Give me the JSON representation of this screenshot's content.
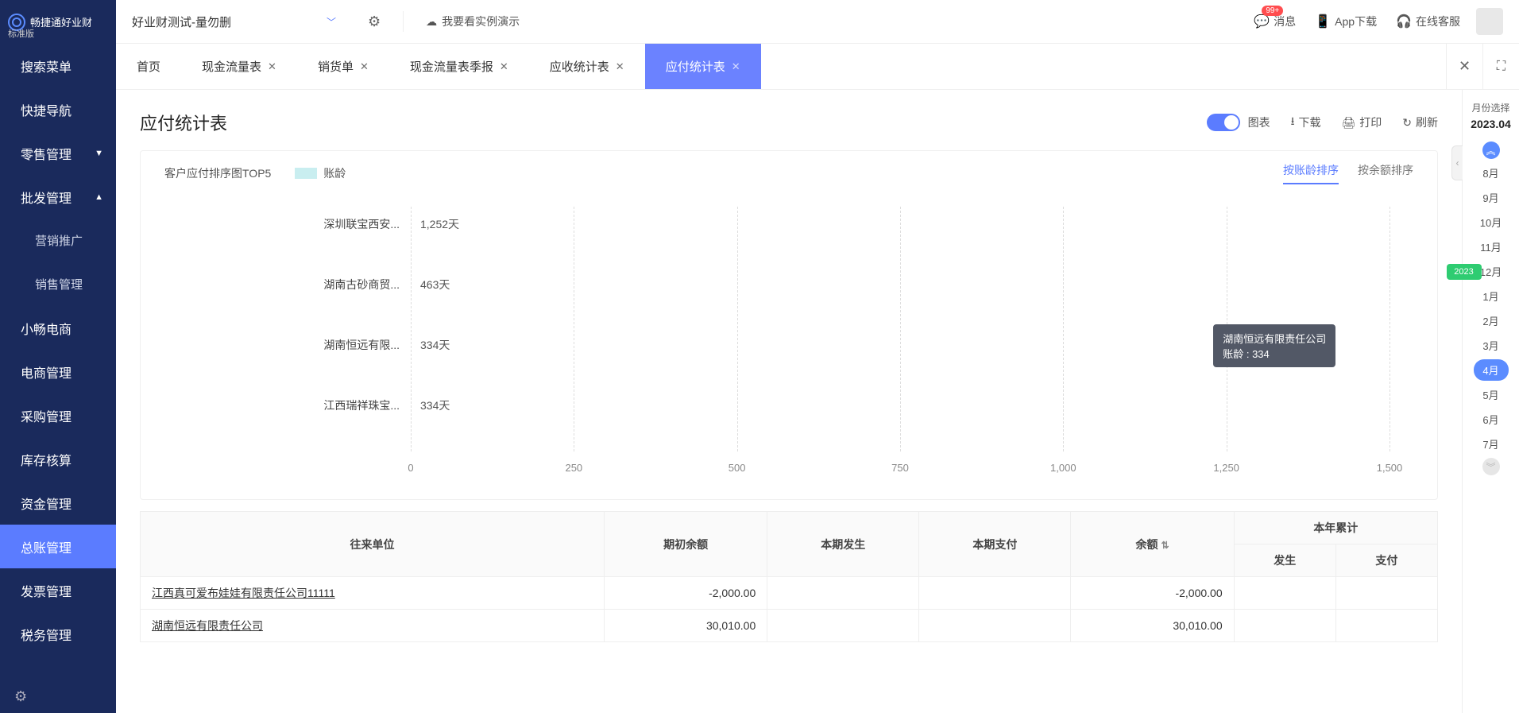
{
  "brand": {
    "name": "畅捷通好业财",
    "edition": "标准版"
  },
  "header": {
    "workspace": "好业财测试-量勿删",
    "demo_link": "我要看实例演示",
    "badge": "99+",
    "buttons": {
      "msg": "消息",
      "app": "App下载",
      "support": "在线客服"
    }
  },
  "sidebar": {
    "items": [
      {
        "label": "搜索菜单"
      },
      {
        "label": "快捷导航"
      },
      {
        "label": "零售管理",
        "chev": "▼"
      },
      {
        "label": "批发管理",
        "chev": "▲"
      },
      {
        "label": "营销推广",
        "sub": true
      },
      {
        "label": "销售管理",
        "sub": true
      },
      {
        "label": "小畅电商"
      },
      {
        "label": "电商管理"
      },
      {
        "label": "采购管理"
      },
      {
        "label": "库存核算"
      },
      {
        "label": "资金管理"
      },
      {
        "label": "总账管理",
        "active": true
      },
      {
        "label": "发票管理"
      },
      {
        "label": "税务管理"
      }
    ]
  },
  "tabs": [
    {
      "label": "首页",
      "closable": false
    },
    {
      "label": "现金流量表",
      "closable": true
    },
    {
      "label": "销货单",
      "closable": true
    },
    {
      "label": "现金流量表季报",
      "closable": true
    },
    {
      "label": "应收统计表",
      "closable": true
    },
    {
      "label": "应付统计表",
      "closable": true,
      "active": true
    }
  ],
  "page": {
    "title": "应付统计表",
    "toolbar": {
      "chart": "图表",
      "download": "下载",
      "print": "打印",
      "refresh": "刷新"
    }
  },
  "chart": {
    "title": "客户应付排序图TOP5",
    "legend_label": "账龄",
    "sort_tabs": {
      "by_age": "按账龄排序",
      "by_balance": "按余额排序"
    },
    "sort_active": "by_age",
    "x_ticks": [
      0,
      250,
      500,
      750,
      1000,
      1250,
      1500
    ],
    "bar_unit": "天",
    "bar_color": "#c9eef0",
    "grid_color": "#dddddd",
    "bars": [
      {
        "label": "深圳联宝西安...",
        "value": 1252
      },
      {
        "label": "湖南古砂商贸...",
        "value": 463
      },
      {
        "label": "湖南恒远有限...",
        "value": 334
      },
      {
        "label": "江西瑞祥珠宝...",
        "value": 334
      }
    ],
    "tooltip": {
      "title": "湖南恒远有限责任公司",
      "metric": "账龄",
      "value": 334
    }
  },
  "table": {
    "columns": {
      "unit": "往来单位",
      "opening": "期初余额",
      "period_occur": "本期发生",
      "period_pay": "本期支付",
      "balance": "余额",
      "ytd": "本年累计",
      "ytd_occur": "发生",
      "ytd_pay": "支付"
    },
    "rows": [
      {
        "unit": "江西真可爱布娃娃有限责任公司11111",
        "opening": "-2,000.00",
        "period_occur": "",
        "period_pay": "",
        "balance": "-2,000.00",
        "ytd_occur": "",
        "ytd_pay": ""
      },
      {
        "unit": "湖南恒远有限责任公司",
        "opening": "30,010.00",
        "period_occur": "",
        "period_pay": "",
        "balance": "30,010.00",
        "ytd_occur": "",
        "ytd_pay": ""
      }
    ]
  },
  "rail": {
    "title": "月份选择",
    "selected": "2023.04",
    "year_badge": "2023",
    "months": [
      "8月",
      "9月",
      "10月",
      "11月",
      "12月",
      "1月",
      "2月",
      "3月",
      "4月",
      "5月",
      "6月",
      "7月"
    ],
    "active_index": 8,
    "year_badge_index": 4
  }
}
